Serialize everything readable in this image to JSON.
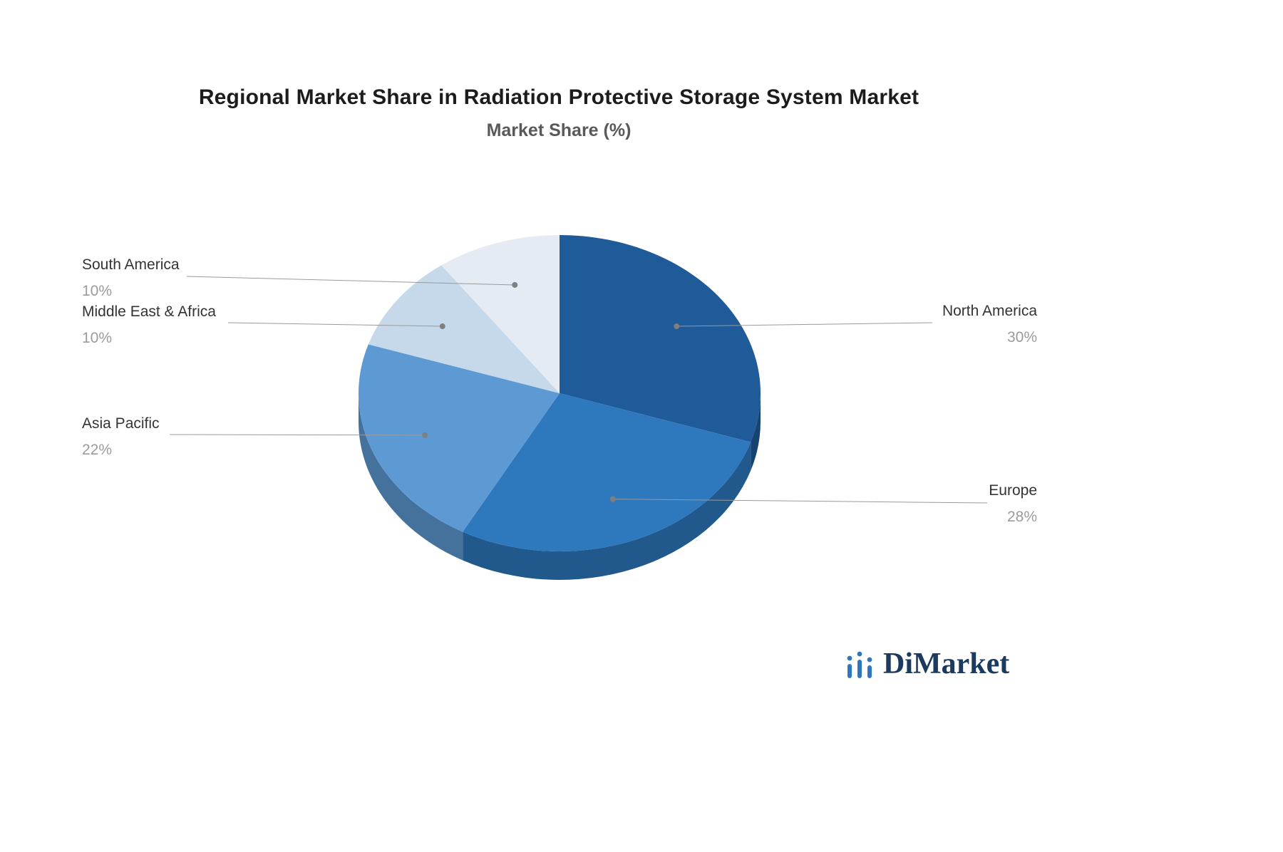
{
  "chart": {
    "title": "Regional Market Share in Radiation Protective Storage System Market",
    "subtitle": "Market Share (%)"
  },
  "chart_data": {
    "type": "pie",
    "title": "Regional Market Share in Radiation Protective Storage System Market",
    "subtitle": "Market Share (%)",
    "unit": "%",
    "categories": [
      "North America",
      "Europe",
      "Asia Pacific",
      "Middle East & Africa",
      "South America"
    ],
    "values": [
      30,
      28,
      22,
      10,
      10
    ],
    "labels": [
      "30%",
      "28%",
      "22%",
      "10%",
      "10%"
    ],
    "colors": [
      "#1f5a99",
      "#2e78be",
      "#5d9ad3",
      "#c6d9eb",
      "#e4ebf3"
    ],
    "start_angle_deg": 0,
    "direction": "clockwise",
    "effect": "3d",
    "legend_position": "none",
    "label_style": "callout-lines",
    "line_color": "#9a9a9a",
    "dot_color": "#7f7f7f"
  },
  "branding": {
    "logo_text": "DiMarket",
    "logo_color": "#1b3a5e",
    "icon_color": "#2e77bd"
  }
}
